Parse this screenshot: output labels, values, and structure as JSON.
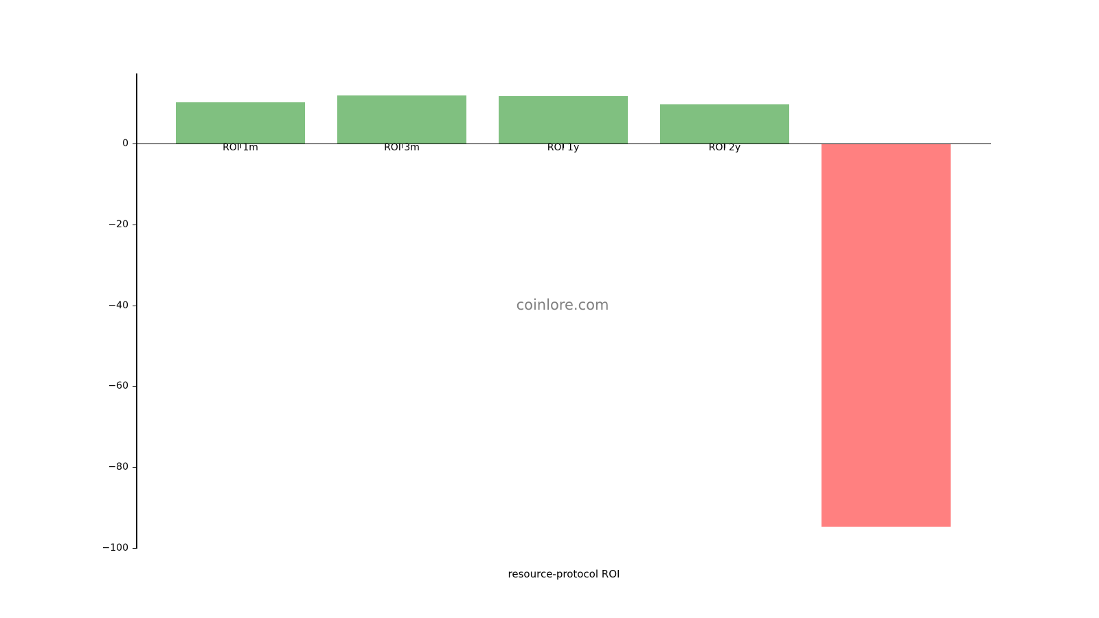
{
  "chart_data": {
    "type": "bar",
    "title": "",
    "xlabel": "resource-protocol ROI",
    "ylabel": "",
    "categories": [
      "ROI 1m",
      "ROI 3m",
      "ROI 1y",
      "ROI 2y",
      ""
    ],
    "values": [
      10.2,
      11.9,
      11.7,
      9.7,
      -94.8
    ],
    "series_note": "single series; last bar is unlabeled negative ROI",
    "ylim": [
      -100.1,
      17.3
    ],
    "yticks": [
      0,
      -20,
      -40,
      -60,
      -80,
      -100
    ],
    "ytick_labels": [
      "0",
      "−20",
      "−40",
      "−60",
      "−80",
      "−100"
    ],
    "grid": false,
    "legend": "none",
    "bar_colors": {
      "positive": "#80c080",
      "negative": "#ff8080"
    },
    "axis_color": "#000000",
    "tick_label_color": "#000000"
  },
  "watermark": {
    "text": "coinlore.com",
    "color": "#808080"
  }
}
